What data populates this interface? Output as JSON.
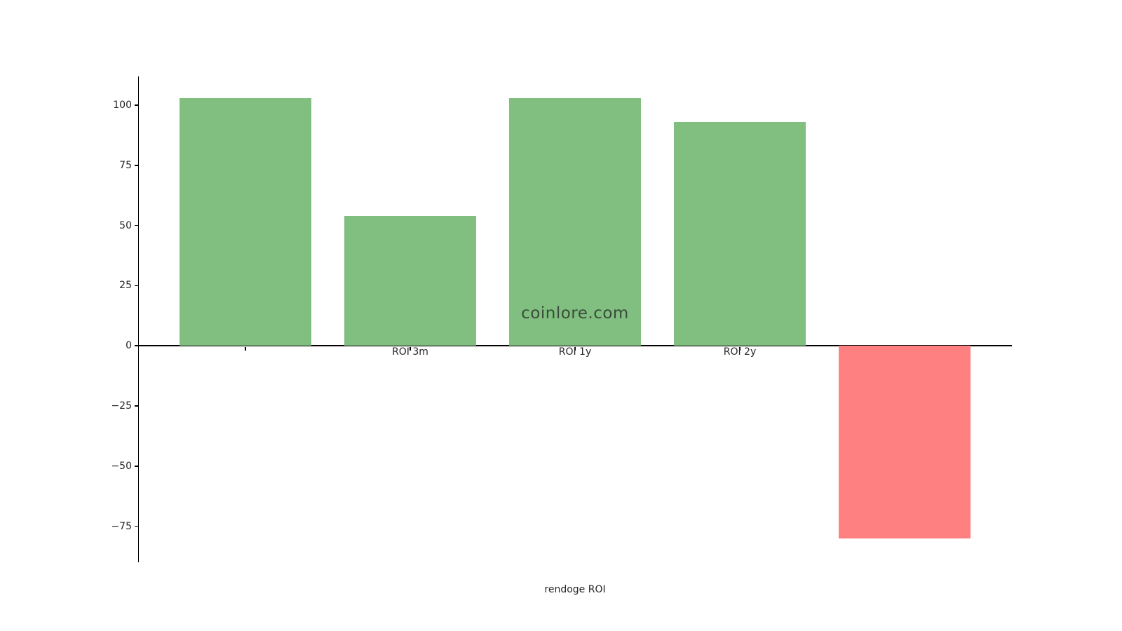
{
  "watermark": {
    "text": "coinlore.com"
  },
  "chart_data": {
    "type": "bar",
    "title": "",
    "xlabel": "rendoge ROI",
    "ylabel": "",
    "categories": [
      "",
      "ROI 3m",
      "ROI 1y",
      "ROI 2y",
      ""
    ],
    "series": [
      {
        "name": "rendoge ROI %",
        "values": [
          103,
          54,
          103,
          93,
          -80
        ]
      }
    ],
    "bar_colors": [
      "#80bf80",
      "#80bf80",
      "#80bf80",
      "#80bf80",
      "#ff8080"
    ],
    "yticks": [
      100,
      75,
      50,
      25,
      0,
      -25,
      -50,
      -75
    ],
    "ytick_labels": [
      "100",
      "75",
      "50",
      "25",
      "0",
      "−25",
      "−50",
      "−75"
    ],
    "ylim": [
      -90,
      112
    ],
    "grid": false,
    "legend": "none",
    "colors": {
      "positive": "#80bf80",
      "negative": "#ff8080",
      "axis": "#000000",
      "text": "#262626"
    }
  }
}
